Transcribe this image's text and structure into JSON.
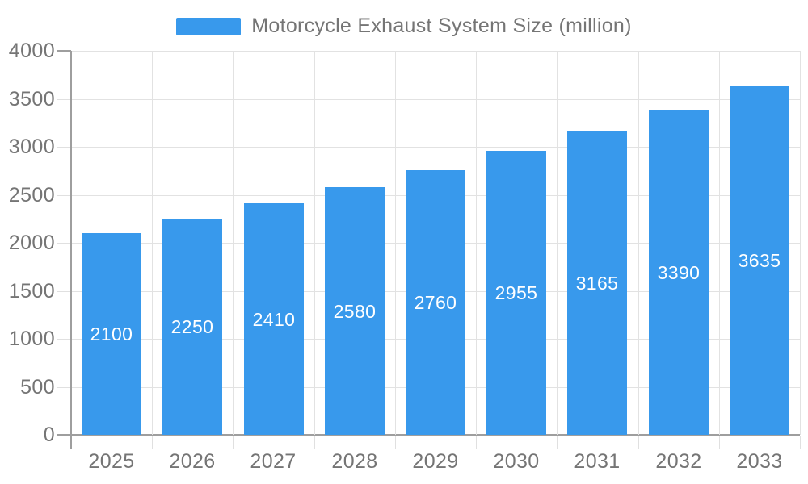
{
  "legend": {
    "label": "Motorcycle Exhaust System Size (million)"
  },
  "chart_data": {
    "type": "bar",
    "title": "Motorcycle Exhaust System Size (million)",
    "categories": [
      "2025",
      "2026",
      "2027",
      "2028",
      "2029",
      "2030",
      "2031",
      "2032",
      "2033"
    ],
    "values": [
      2100,
      2250,
      2410,
      2580,
      2760,
      2955,
      3165,
      3390,
      3635
    ],
    "xlabel": "",
    "ylabel": "",
    "ylim": [
      0,
      4000
    ],
    "yticks": [
      0,
      500,
      1000,
      1500,
      2000,
      2500,
      3000,
      3500,
      4000
    ],
    "grid": true,
    "legend_position": "top",
    "bar_labels_inside": true
  },
  "colors": {
    "bar": "#3899EC",
    "bar_label": "#ffffff",
    "axis": "#9e9e9e",
    "gridline": "#e2e2e2",
    "tick_light": "#e0e0e0",
    "text": "#757575",
    "background": "#ffffff"
  }
}
